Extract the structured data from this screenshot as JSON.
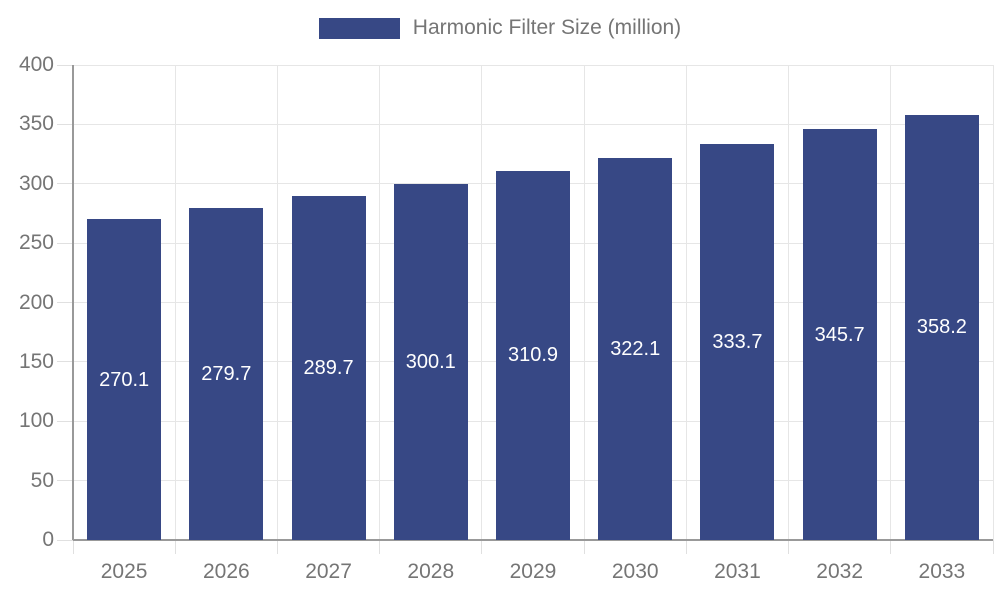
{
  "chart_data": {
    "type": "bar",
    "title": "Harmonic Filter Size (million)",
    "series": [
      {
        "name": "Harmonic Filter Size (million)",
        "values": [
          270.1,
          279.7,
          289.7,
          300.1,
          310.9,
          322.1,
          333.7,
          345.7,
          358.2
        ]
      }
    ],
    "categories": [
      "2025",
      "2026",
      "2027",
      "2028",
      "2029",
      "2030",
      "2031",
      "2032",
      "2033"
    ],
    "values": [
      270.1,
      279.7,
      289.7,
      300.1,
      310.9,
      322.1,
      333.7,
      345.7,
      358.2
    ],
    "xlabel": "",
    "ylabel": "",
    "ylim": [
      0,
      400
    ],
    "yticks": [
      0,
      50,
      100,
      150,
      200,
      250,
      300,
      350,
      400
    ],
    "grid": true,
    "legend_position": "top-center",
    "colors": {
      "bar": "#374885",
      "grid_line": "#e6e6e6",
      "axis_line": "#999999",
      "tick_mark": "#e0e0e0",
      "axis_text": "#757575",
      "value_label": "#ffffff",
      "background": "#ffffff"
    }
  }
}
